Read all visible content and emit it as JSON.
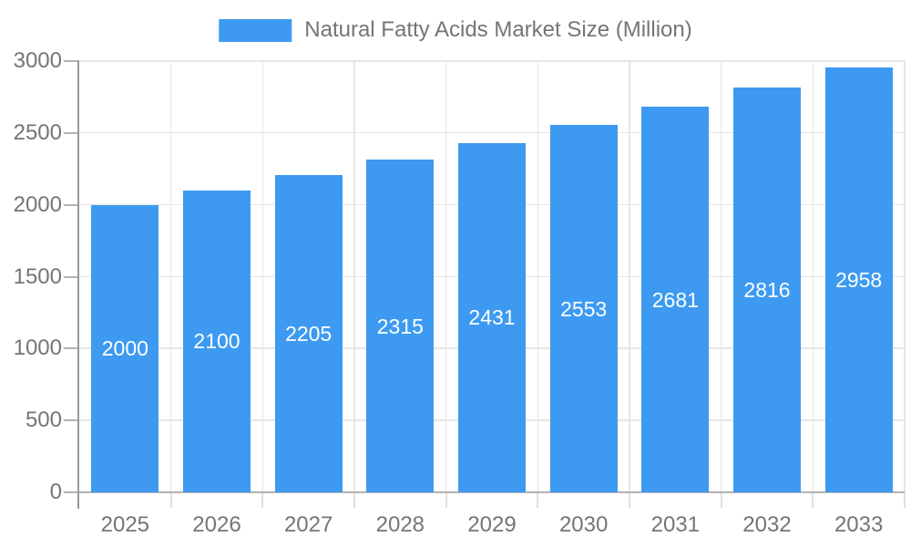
{
  "chart_data": {
    "type": "bar",
    "title": "Natural Fatty Acids Market Size (Million)",
    "categories": [
      "2025",
      "2026",
      "2027",
      "2028",
      "2029",
      "2030",
      "2031",
      "2032",
      "2033"
    ],
    "values": [
      2000,
      2100,
      2205,
      2315,
      2431,
      2553,
      2681,
      2816,
      2958
    ],
    "bar_value_labels": [
      "2000",
      "2100",
      "2205",
      "2315",
      "2431",
      "2553",
      "2681",
      "2816",
      "2958"
    ],
    "xlabel": "",
    "ylabel": "",
    "ylim": [
      0,
      3000
    ],
    "yticks": [
      0,
      500,
      1000,
      1500,
      2000,
      2500,
      3000
    ],
    "ytick_labels": [
      "0",
      "500",
      "1000",
      "1500",
      "2000",
      "2500",
      "3000"
    ],
    "grid": true,
    "legend_position": "top",
    "colors": {
      "bar": "#3d9af0",
      "bar_label": "#ffffff",
      "axis_text": "#757575",
      "grid_line": "#e6e6e6",
      "x_axis_line": "#b3b3b3",
      "y_axis_line": "#999999",
      "y_tick": "#b3b3b3",
      "boundary_tick": "#e0e0e0"
    }
  }
}
